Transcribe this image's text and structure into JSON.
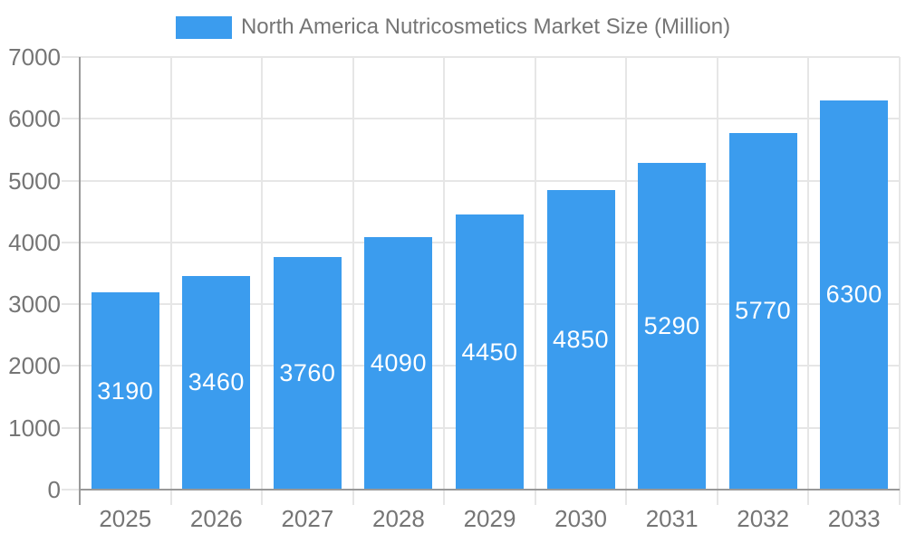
{
  "legend": {
    "label": "North America Nutricosmetics Market Size (Million)"
  },
  "style": {
    "bar_color": "#3b9cee",
    "grid_color": "#e6e6e6",
    "axis_color": "#999999",
    "tick_text_color": "#757575",
    "bar_label_color": "#ffffff",
    "legend_text_color": "#757575",
    "background": "#ffffff"
  },
  "chart_data": {
    "type": "bar",
    "title": "North America Nutricosmetics Market Size (Million)",
    "categories": [
      "2025",
      "2026",
      "2027",
      "2028",
      "2029",
      "2030",
      "2031",
      "2032",
      "2033"
    ],
    "values": [
      3190,
      3460,
      3760,
      4090,
      4450,
      4850,
      5290,
      5770,
      6300
    ],
    "series_name": "North America Nutricosmetics Market Size (Million)",
    "xlabel": "",
    "ylabel": "",
    "ylim": [
      0,
      7000
    ],
    "ytick_step": 1000,
    "yticks": [
      "0",
      "1000",
      "2000",
      "3000",
      "4000",
      "5000",
      "6000",
      "7000"
    ],
    "grid": true,
    "legend_position": "top",
    "value_labels_position": "inside-center"
  }
}
